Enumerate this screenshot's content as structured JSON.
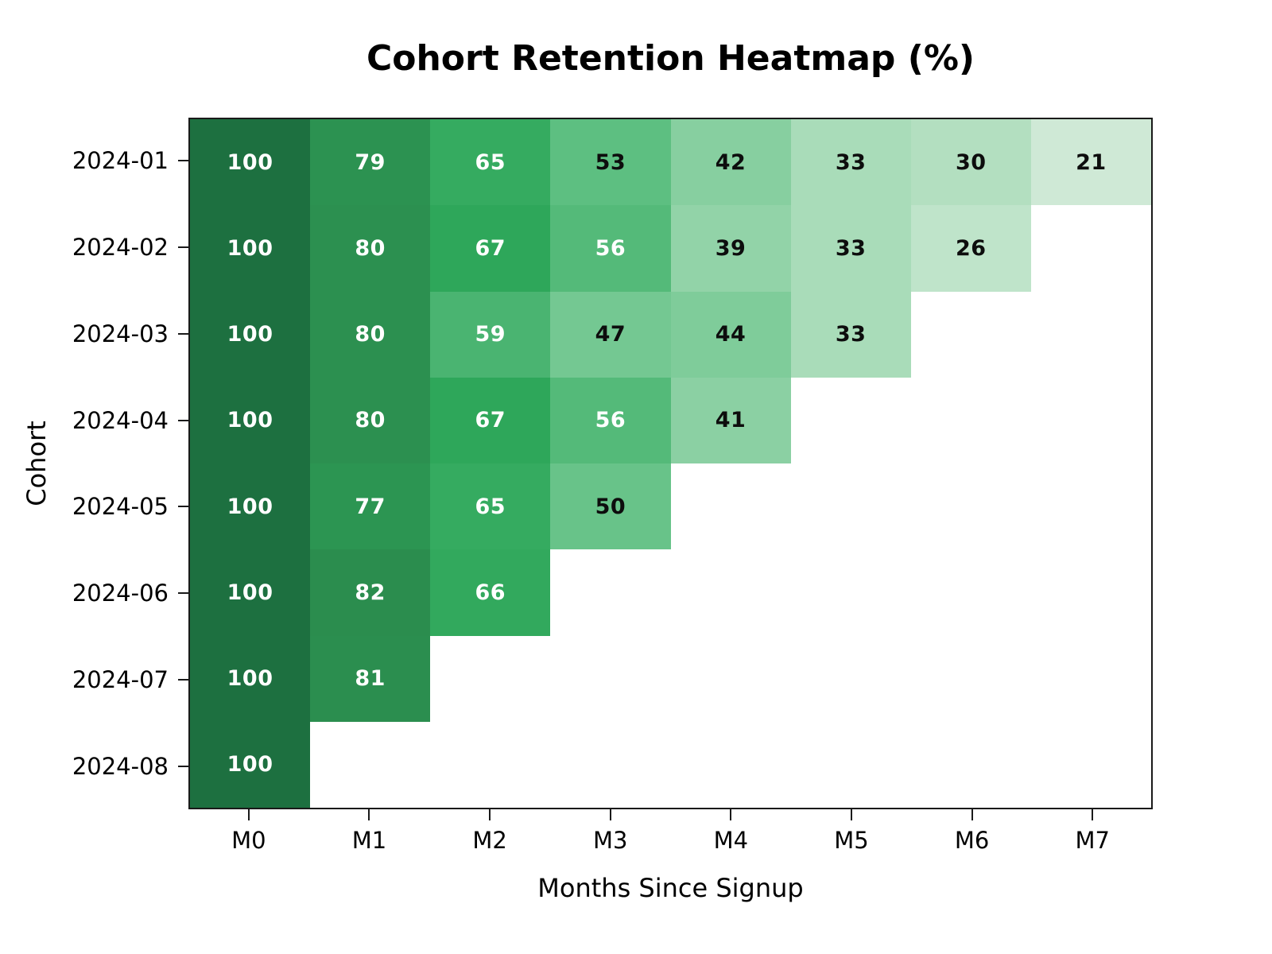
{
  "chart_data": {
    "type": "heatmap",
    "title": "Cohort Retention Heatmap (%)",
    "xlabel": "Months Since Signup",
    "ylabel": "Cohort",
    "x_categories": [
      "M0",
      "M1",
      "M2",
      "M3",
      "M4",
      "M5",
      "M6",
      "M7"
    ],
    "y_categories": [
      "2024-01",
      "2024-02",
      "2024-03",
      "2024-04",
      "2024-05",
      "2024-06",
      "2024-07",
      "2024-08"
    ],
    "values": [
      [
        100,
        79,
        65,
        53,
        42,
        33,
        30,
        21
      ],
      [
        100,
        80,
        67,
        56,
        39,
        33,
        26,
        null
      ],
      [
        100,
        80,
        59,
        47,
        44,
        33,
        null,
        null
      ],
      [
        100,
        80,
        67,
        56,
        41,
        null,
        null,
        null
      ],
      [
        100,
        77,
        65,
        50,
        null,
        null,
        null,
        null
      ],
      [
        100,
        82,
        66,
        null,
        null,
        null,
        null,
        null
      ],
      [
        100,
        81,
        null,
        null,
        null,
        null,
        null,
        null
      ],
      [
        100,
        null,
        null,
        null,
        null,
        null,
        null,
        null
      ]
    ],
    "colormap": {
      "name": "greens",
      "missing": "#ffffff",
      "stops": [
        [
          21,
          "#cfe9d6"
        ],
        [
          33,
          "#a9dcb9"
        ],
        [
          42,
          "#87cfa0"
        ],
        [
          53,
          "#5dbf81"
        ],
        [
          59,
          "#4ab471"
        ],
        [
          65,
          "#35ab60"
        ],
        [
          67,
          "#2ea75a"
        ],
        [
          80,
          "#2c9050"
        ],
        [
          100,
          "#1d7040"
        ]
      ]
    },
    "text_color_rule": {
      "threshold": 55,
      "above": "#ffffff",
      "below": "#0d0d0d"
    },
    "layout": {
      "grid": "off",
      "legend": "none",
      "axis_color": "#1a1a1a"
    }
  }
}
